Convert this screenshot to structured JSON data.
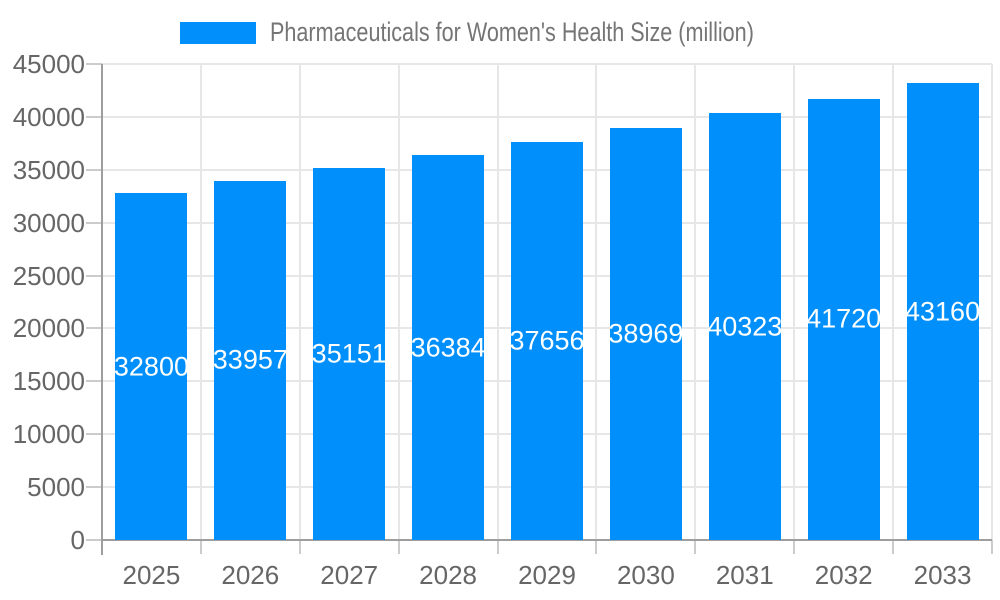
{
  "chart_data": {
    "type": "bar",
    "title": "Pharmaceuticals for Women's Health Size (million)",
    "legend": {
      "position": "top",
      "marker": "rect"
    },
    "categories": [
      "2025",
      "2026",
      "2027",
      "2028",
      "2029",
      "2030",
      "2031",
      "2032",
      "2033"
    ],
    "series": [
      {
        "name": "Pharmaceuticals for Women's Health Size (million)",
        "values": [
          32800,
          33957,
          35151,
          36384,
          37656,
          38969,
          40323,
          41720,
          43160
        ]
      }
    ],
    "bar_value_labels": [
      "32800",
      "33957",
      "35151",
      "36384",
      "37656",
      "38969",
      "40323",
      "41720",
      "43160"
    ],
    "xlabel": "",
    "ylabel": "",
    "ylim": [
      0,
      45000
    ],
    "ytick_step": 5000,
    "ytick_labels": [
      "0",
      "5000",
      "10000",
      "15000",
      "20000",
      "25000",
      "30000",
      "35000",
      "40000",
      "45000"
    ],
    "grid": true
  },
  "colors": {
    "bar": "#008ffb",
    "bar_label": "#ffffff",
    "legend_text": "#757575",
    "axis_text": "#666666",
    "gridline": "#e7e7e7",
    "tick": "#cccccc",
    "axis_line": "#9e9e9e",
    "background": "#ffffff"
  }
}
